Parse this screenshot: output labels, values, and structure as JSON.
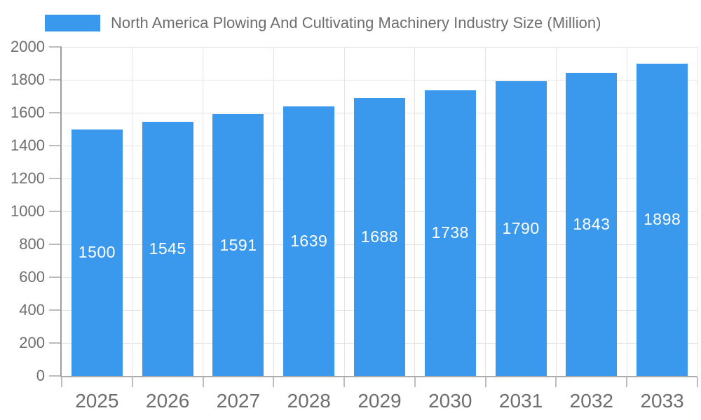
{
  "chart_data": {
    "type": "bar",
    "title": "North America Plowing And Cultivating Machinery Industry Size (Million)",
    "series_name": "North America Plowing And Cultivating Machinery Industry Size (Million)",
    "categories": [
      "2025",
      "2026",
      "2027",
      "2028",
      "2029",
      "2030",
      "2031",
      "2032",
      "2033"
    ],
    "values": [
      1500,
      1545,
      1591,
      1639,
      1688,
      1738,
      1790,
      1843,
      1898
    ],
    "value_labels": [
      "1500",
      "1545",
      "1591",
      "1639",
      "1688",
      "1738",
      "1790",
      "1843",
      "1898"
    ],
    "xlabel": "",
    "ylabel": "",
    "ylim": [
      0,
      2000
    ],
    "ytick_step": 200,
    "ytick_labels": [
      "0",
      "200",
      "400",
      "600",
      "800",
      "1000",
      "1200",
      "1400",
      "1600",
      "1800",
      "2000"
    ],
    "grid": true,
    "legend_position": "top-left",
    "colors": {
      "bar": "#3A99EC",
      "value_label": "#FFFFFF",
      "text": "#6E6E6E",
      "grid": "#E4E4E4",
      "axis": "#9E9E9E",
      "baseline": "#ABABAB",
      "tick": "#BDBDBD",
      "background": "#FFFFFF"
    }
  }
}
